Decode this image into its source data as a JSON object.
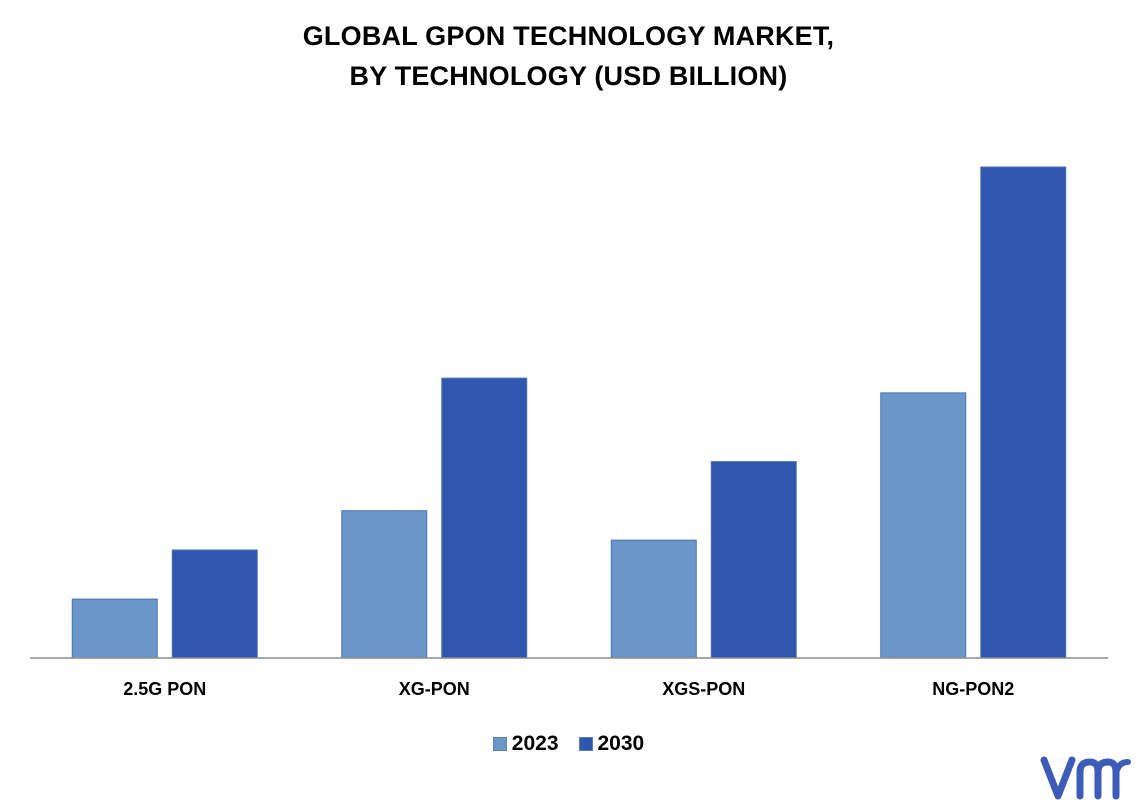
{
  "chart_data": {
    "type": "bar",
    "title": [
      "GLOBAL GPON TECHNOLOGY MARKET,",
      "BY TECHNOLOGY (USD BILLION)"
    ],
    "categories": [
      "2.5G PON",
      "XG-PON",
      "XGS-PON",
      "NG-PON2"
    ],
    "series": [
      {
        "name": "2023",
        "color": "#6b96c9",
        "values": [
          0.6,
          1.5,
          1.2,
          2.7
        ]
      },
      {
        "name": "2030",
        "color": "#2e57ad",
        "values": [
          1.1,
          2.85,
          2.0,
          5.0
        ]
      }
    ],
    "ylim": [
      0,
      5.0
    ],
    "grid": false,
    "value_axis_visible": false,
    "legend_position": "bottom-center"
  },
  "logo": {
    "icon": "vmr-logo-icon",
    "color": "#3d5bb8"
  }
}
